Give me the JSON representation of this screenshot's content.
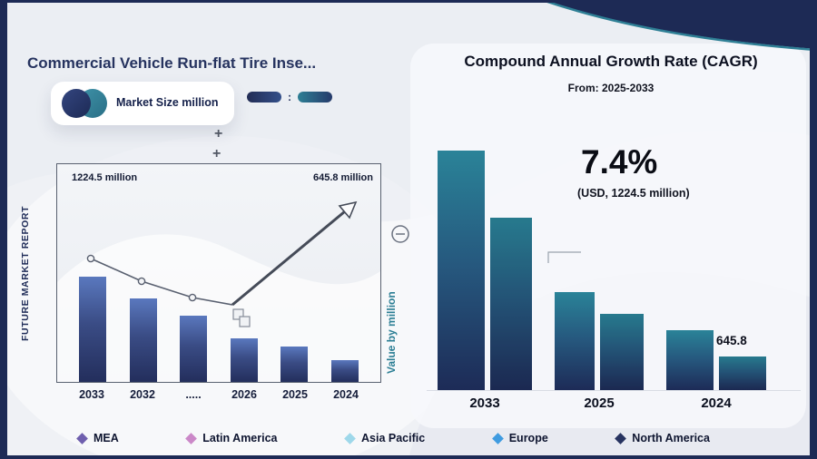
{
  "colors": {
    "navy": "#1d2a55",
    "teal": "#2e7f95",
    "background": "#eff1f5"
  },
  "decor": {
    "plus": "+",
    "colon": ":"
  },
  "left_panel": {
    "title": "Commercial Vehicle Run-flat Tire Inse...",
    "market_size_label": "Market Size million",
    "watermark": "FUTURE MARKET REPORT",
    "annotation_left": "1224.5 million",
    "annotation_right": "645.8 million"
  },
  "right_panel": {
    "title": "Compound Annual Growth Rate (CAGR)",
    "subtitle": "From: 2025-2033",
    "cagr_value": "7.4%",
    "cagr_note": "(USD, 1224.5 million)",
    "value_label": "645.8",
    "y_axis_label": "Value by million"
  },
  "legend": [
    {
      "label": "MEA",
      "color": "#6f5fae"
    },
    {
      "label": "Latin America",
      "color": "#cb88c8"
    },
    {
      "label": "Asia Pacific",
      "color": "#9ed8ea"
    },
    {
      "label": "Europe",
      "color": "#3f9be0"
    },
    {
      "label": "North America",
      "color": "#273360"
    }
  ],
  "chart_data": [
    {
      "type": "bar",
      "title": "Commercial Vehicle Run-flat Tire Inse... Market Size million",
      "categories": [
        "2033",
        "2032",
        ".....",
        "2026",
        "2025",
        "2024"
      ],
      "bar_heights_pct": [
        100,
        79,
        63,
        41,
        34,
        21
      ],
      "labeled_values_million": {
        "2033": 1224.5,
        "2024": 645.8
      },
      "annotations": [
        "1224.5 million",
        "645.8 million"
      ],
      "legend_label": "Market Size million",
      "xlabel": "",
      "ylabel": ""
    },
    {
      "type": "bar",
      "title": "Compound Annual Growth Rate (CAGR)",
      "subtitle": "From: 2025-2033",
      "categories": [
        "2033",
        "2025",
        "2024"
      ],
      "series": [
        {
          "name": "bar-1",
          "heights_pct": [
            100,
            41,
            25
          ]
        },
        {
          "name": "bar-2",
          "heights_pct": [
            72,
            32,
            14
          ]
        }
      ],
      "cagr_percent": 7.4,
      "labeled_values_million": {
        "2033": 1224.5,
        "2024": 645.8
      },
      "value_label": "645.8",
      "ylabel": "Value by million",
      "xlabel": ""
    }
  ]
}
